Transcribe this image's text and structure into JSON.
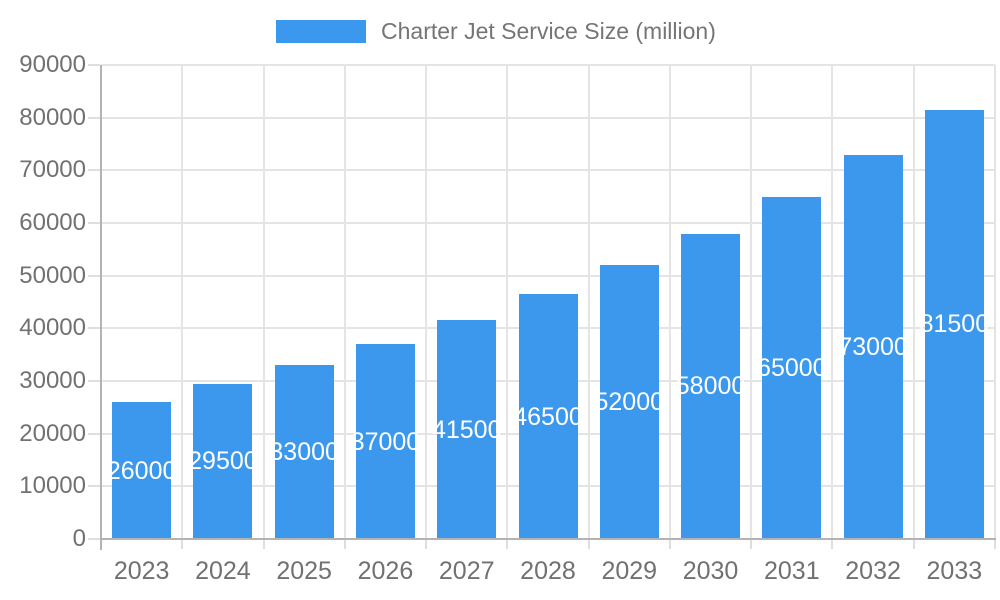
{
  "legend": {
    "label": "Charter Jet Service Size (million)",
    "swatch_color": "#3b98ec"
  },
  "chart_data": {
    "type": "bar",
    "title": "Charter Jet Service Size (million)",
    "series_name": "Charter Jet Service Size (million)",
    "categories": [
      "2023",
      "2024",
      "2025",
      "2026",
      "2027",
      "2028",
      "2029",
      "2030",
      "2031",
      "2032",
      "2033"
    ],
    "values": [
      26000,
      29500,
      33000,
      37000,
      41500,
      46500,
      52000,
      58000,
      65000,
      73000,
      81500
    ],
    "yticks": [
      0,
      10000,
      20000,
      30000,
      40000,
      50000,
      60000,
      70000,
      80000,
      90000
    ],
    "ylim": [
      0,
      90000
    ],
    "xlabel": "",
    "ylabel": "",
    "grid": "on",
    "legend_position": "top",
    "value_labels": "inside-center"
  },
  "colors": {
    "bar": "#3b98ec",
    "bar_label": "#ffffff",
    "axis_line": "#b3b3b3",
    "gridline": "#e4e4e4",
    "tick": "#dedede",
    "axis_text": "#717171",
    "legend_text": "#757575",
    "background": "#ffffff"
  }
}
